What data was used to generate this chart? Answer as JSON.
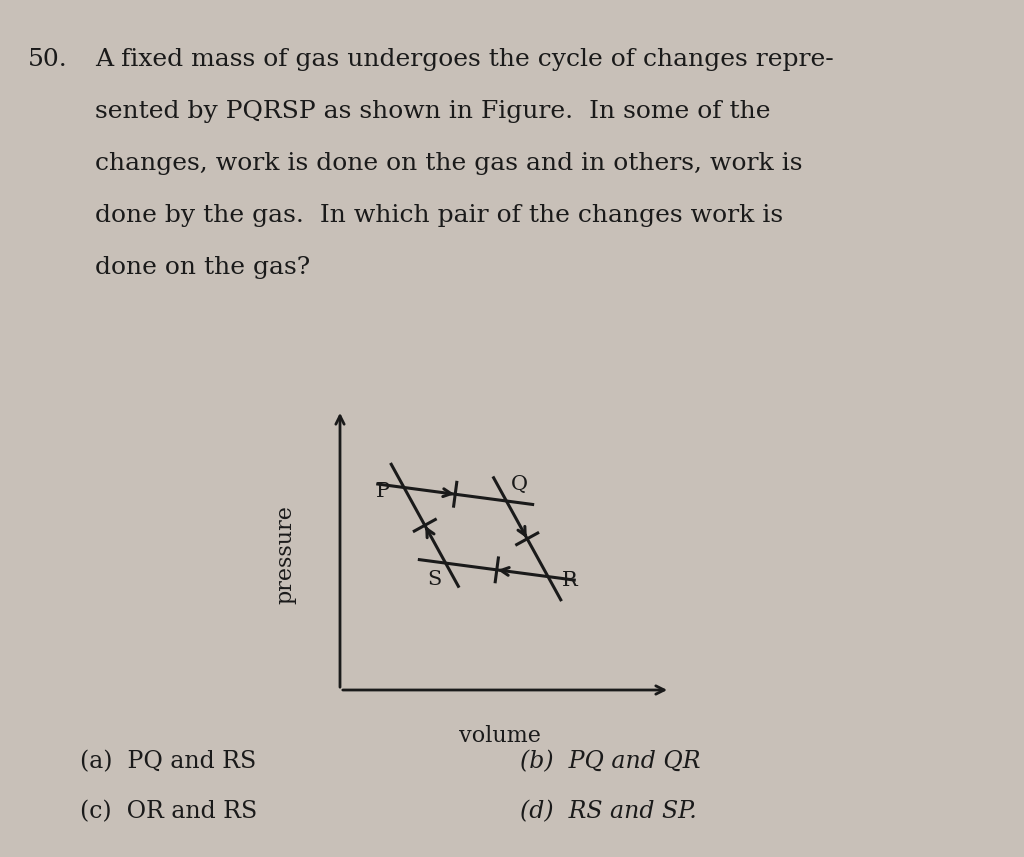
{
  "xlabel": "volume",
  "ylabel": "pressure",
  "bg_color": "#c8c0b8",
  "line_color": "#1a1a1a",
  "text_color": "#1a1a1a",
  "P": [
    2.0,
    7.5
  ],
  "Q": [
    5.2,
    7.0
  ],
  "R": [
    6.5,
    4.2
  ],
  "S": [
    3.3,
    4.7
  ],
  "xlim": [
    0,
    10
  ],
  "ylim": [
    0,
    10
  ]
}
